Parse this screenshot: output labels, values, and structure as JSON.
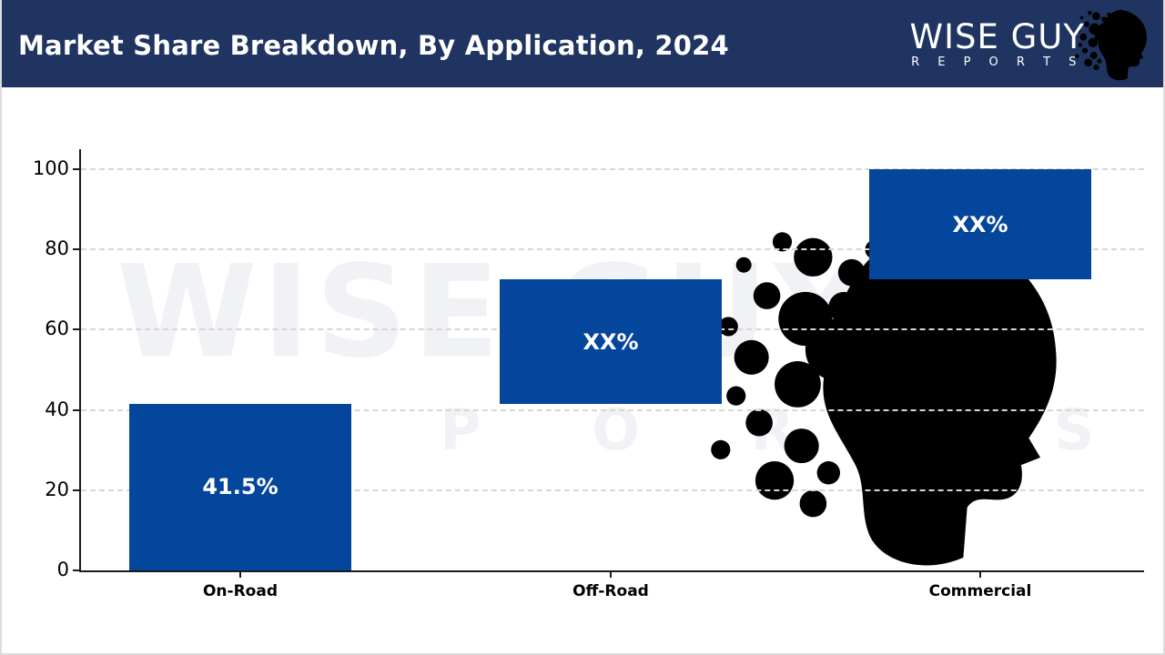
{
  "header": {
    "title": "Market Share Breakdown, By Application, 2024",
    "logo": {
      "wordmark": "WISE GUY",
      "subtext": "R E P O R T S"
    }
  },
  "watermark": {
    "line1": "WISE GUY",
    "line2": "R E P O R T S"
  },
  "colors": {
    "header_bg": "#1f3461",
    "bar": "#04469c",
    "bar_label": "#ffffff",
    "grid": "#d6d6d6",
    "axis": "#1a1a1a",
    "watermark": "#f1f2f5"
  },
  "chart_data": {
    "type": "bar",
    "subtype": "floating-waterfall",
    "title": "Market Share Breakdown, By Application, 2024",
    "categories": [
      "On-Road",
      "Off-Road",
      "Commercial"
    ],
    "series": [
      {
        "name": "Market share (%)",
        "base": [
          0,
          41.5,
          72.5
        ],
        "top": [
          41.5,
          72.5,
          100
        ],
        "labels": [
          "41.5%",
          "XX%",
          "XX%"
        ]
      }
    ],
    "yticks": [
      0,
      20,
      40,
      60,
      80,
      100
    ],
    "ylim": [
      0,
      105
    ],
    "grid": "horizontal-dashed",
    "legend": "none"
  }
}
